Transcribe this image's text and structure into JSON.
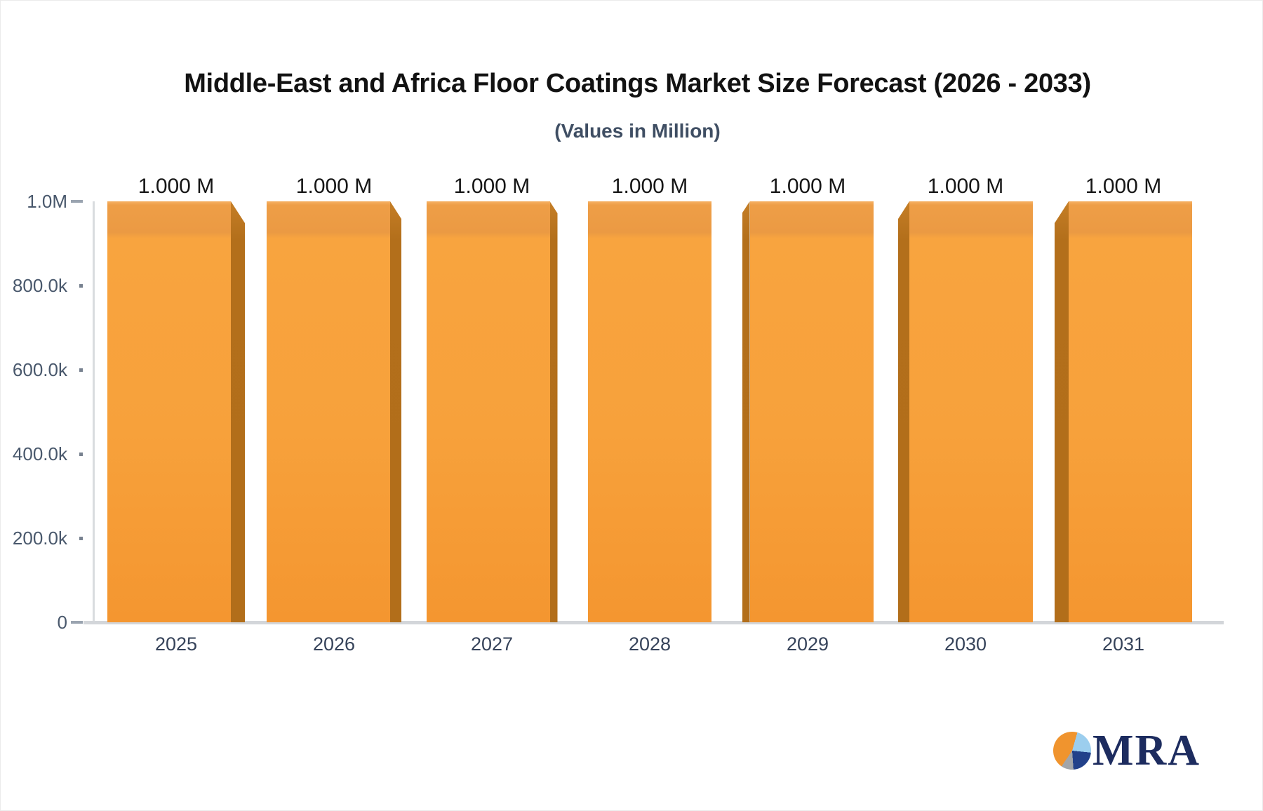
{
  "header": {
    "title": "Middle-East and Africa Floor Coatings Market Size Forecast (2026 - 2033)",
    "subtitle": "(Values in Million)"
  },
  "chart_data": {
    "type": "bar",
    "title": "Middle-East and Africa Floor Coatings Market Size Forecast (2026 - 2033)",
    "subtitle": "(Values in Million)",
    "categories": [
      "2025",
      "2026",
      "2027",
      "2028",
      "2029",
      "2030",
      "2031"
    ],
    "values": [
      1000000,
      1000000,
      1000000,
      1000000,
      1000000,
      1000000,
      1000000
    ],
    "bar_value_labels": [
      "1.000 M",
      "1.000 M",
      "1.000 M",
      "1.000 M",
      "1.000 M",
      "1.000 M",
      "1.000 M"
    ],
    "xlabel": "",
    "ylabel": "",
    "ylim": [
      0,
      1000000
    ],
    "y_ticks": [
      {
        "label": "1.0M",
        "value": 1000000,
        "major": true
      },
      {
        "label": "800.0k",
        "value": 800000,
        "major": false
      },
      {
        "label": "600.0k",
        "value": 600000,
        "major": false
      },
      {
        "label": "400.0k",
        "value": 400000,
        "major": false
      },
      {
        "label": "200.0k",
        "value": 200000,
        "major": false
      },
      {
        "label": "0",
        "value": 0,
        "major": true
      }
    ],
    "grid": false,
    "legend": false,
    "bar_style": "3d-perspective-center",
    "bar_face_color": "#f7a23c",
    "bar_side_color": "#b36f1b"
  },
  "logo": {
    "text": "MRA",
    "icon": "pie-chart-logo-icon",
    "colors": {
      "orange": "#f0942e",
      "light_blue": "#9cceee",
      "dark_blue": "#22418a",
      "gray": "#a2a5a9",
      "text": "#1d2c5f"
    }
  }
}
